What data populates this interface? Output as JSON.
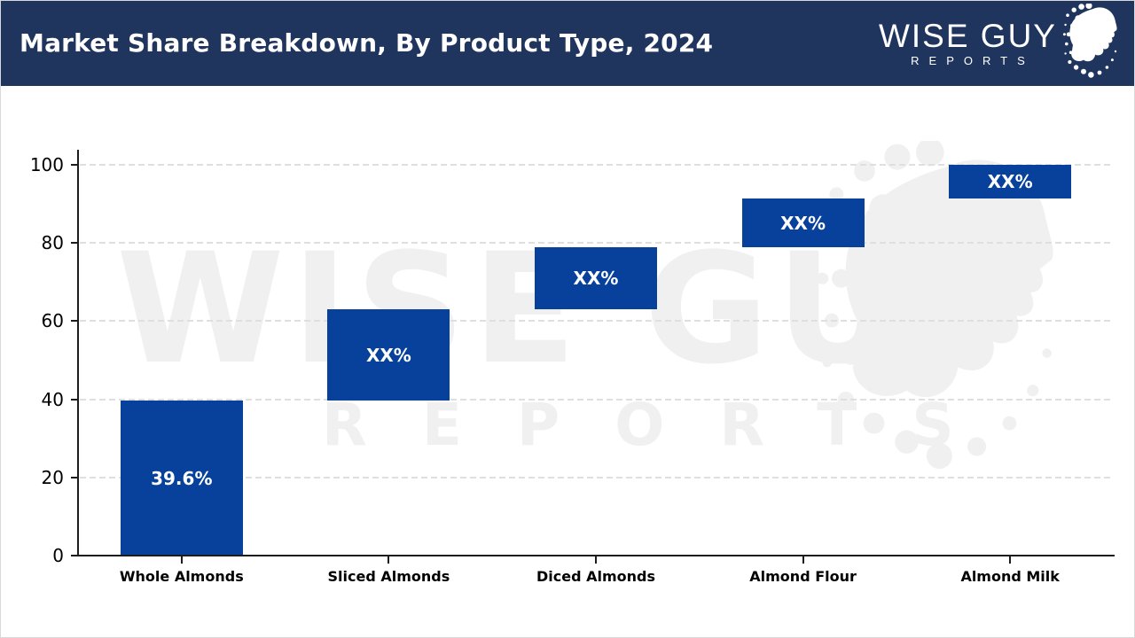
{
  "header": {
    "title": "Market Share Breakdown, By Product Type, 2024",
    "logo": {
      "line1": "WISE GUY",
      "line2": "REPORTS"
    }
  },
  "watermark": {
    "line1": "WISE GUY",
    "line2": "REPORTS"
  },
  "chart_data": {
    "type": "bar",
    "variant": "floating-segment-waterfall",
    "title": "Market Share Breakdown, By Product Type, 2024",
    "xlabel": "",
    "ylabel": "",
    "categories": [
      "Whole Almonds",
      "Sliced Almonds",
      "Diced Almonds",
      "Almond Flour",
      "Almond Milk"
    ],
    "segments": [
      {
        "category": "Whole Almonds",
        "start": 0,
        "end": 39.6,
        "label": "39.6%"
      },
      {
        "category": "Sliced Almonds",
        "start": 39.6,
        "end": 63,
        "label": "XX%"
      },
      {
        "category": "Diced Almonds",
        "start": 63,
        "end": 78.8,
        "label": "XX%"
      },
      {
        "category": "Almond Flour",
        "start": 78.8,
        "end": 91.3,
        "label": "XX%"
      },
      {
        "category": "Almond Milk",
        "start": 91.3,
        "end": 100,
        "label": "XX%"
      }
    ],
    "y_ticks": [
      0,
      20,
      40,
      60,
      80,
      100
    ],
    "ylim": [
      0,
      103
    ],
    "grid": "dashed-horizontal",
    "legend": "none",
    "bar_color": "#07419c",
    "bar_label_color": "#ffffff"
  },
  "colors": {
    "header_bg": "#1f355e",
    "bar": "#07419c",
    "gridline": "#dfdfdf",
    "axis": "#1c1c1c",
    "watermark": "#f0f0f0",
    "canvas_border": "#d9d9d9"
  }
}
